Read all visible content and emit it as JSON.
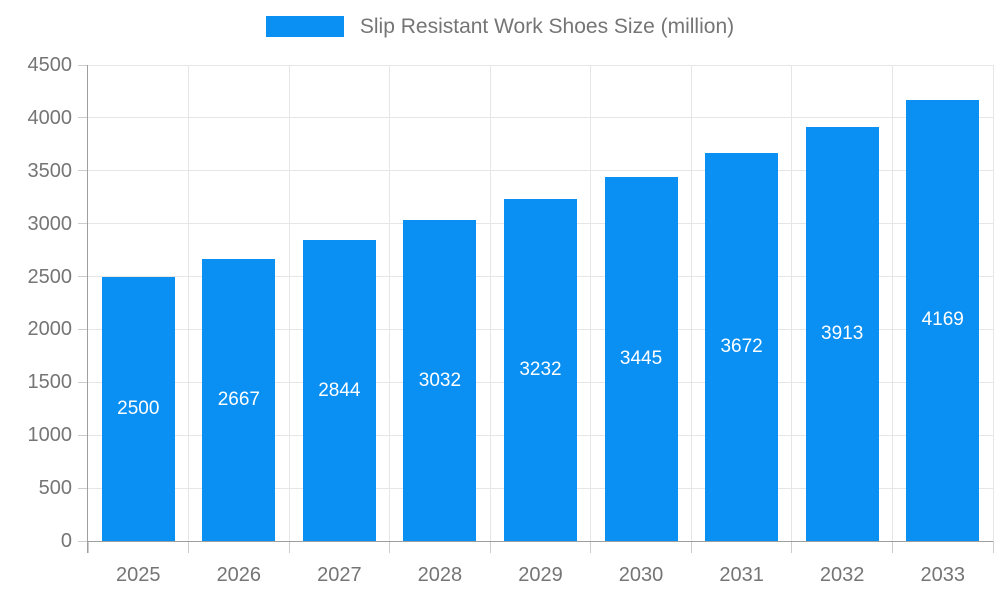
{
  "chart_data": {
    "type": "bar",
    "title": "Slip Resistant Work Shoes Size (million)",
    "legend_entries": [
      "Slip Resistant Work Shoes Size (million)"
    ],
    "legend_position": "top",
    "categories": [
      "2025",
      "2026",
      "2027",
      "2028",
      "2029",
      "2030",
      "2031",
      "2032",
      "2033"
    ],
    "series": [
      {
        "name": "Slip Resistant Work Shoes Size (million)",
        "values": [
          2500,
          2667,
          2844,
          3032,
          3232,
          3445,
          3672,
          3913,
          4169
        ]
      }
    ],
    "data_labels": [
      2500,
      2667,
      2844,
      3032,
      3232,
      3445,
      3672,
      3913,
      4169
    ],
    "data_label_position": "inside-center",
    "xlabel": "",
    "ylabel": "",
    "ylim": [
      0,
      4500
    ],
    "y_ticks": [
      0,
      500,
      1000,
      1500,
      2000,
      2500,
      3000,
      3500,
      4000,
      4500
    ],
    "grid": true,
    "colors": {
      "bar": "#0a8ff2",
      "bar_label_text": "#ffffff",
      "axis_text": "#757575",
      "legend_text": "#757575",
      "gridline": "#e6e6e6",
      "tick": "#cccccc",
      "axis_line": "#9e9e9e",
      "background": "#ffffff"
    }
  }
}
